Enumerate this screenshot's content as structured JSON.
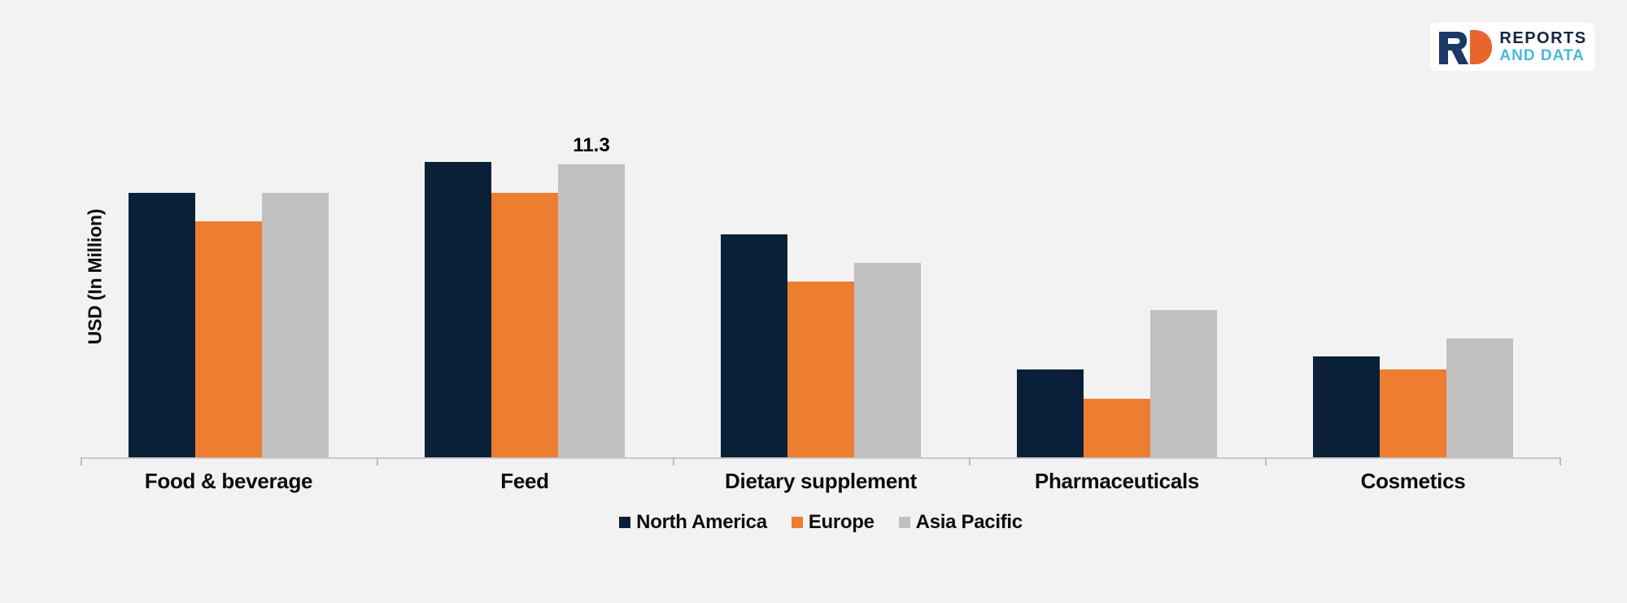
{
  "page": {
    "background_color": "#f2f2f2",
    "axis_color": "#c9c9c9",
    "text_color": "#0d0d0d"
  },
  "logo": {
    "monogram": "RD",
    "line1": "REPORTS",
    "line2": "AND DATA",
    "colors": {
      "monogram_r": "#1c3866",
      "monogram_d": "#e8652e",
      "line1": "#16243f",
      "line2": "#4ab9d9",
      "box": "#ffffff"
    }
  },
  "chart_data": {
    "type": "bar",
    "title": "",
    "xlabel": "",
    "ylabel": "USD (In Million)",
    "categories": [
      "Food & beverage",
      "Feed",
      "Dietary supplement",
      "Pharmaceuticals",
      "Cosmetics"
    ],
    "series": [
      {
        "name": "North America",
        "color": "#0a2038",
        "values": [
          10.2,
          11.4,
          8.6,
          3.4,
          3.9
        ]
      },
      {
        "name": "Europe",
        "color": "#ed7d31",
        "values": [
          9.1,
          10.2,
          6.8,
          2.3,
          3.4
        ]
      },
      {
        "name": "Asia Pacific",
        "color": "#c0c0c0",
        "values": [
          10.2,
          11.3,
          7.5,
          5.7,
          4.6
        ]
      }
    ],
    "data_labels": [
      {
        "series": "Asia Pacific",
        "category": "Feed",
        "text": "11.3"
      }
    ],
    "ylim": [
      0,
      12
    ],
    "grid": false,
    "legend_position": "bottom",
    "y_axis_ticks_visible": false
  }
}
